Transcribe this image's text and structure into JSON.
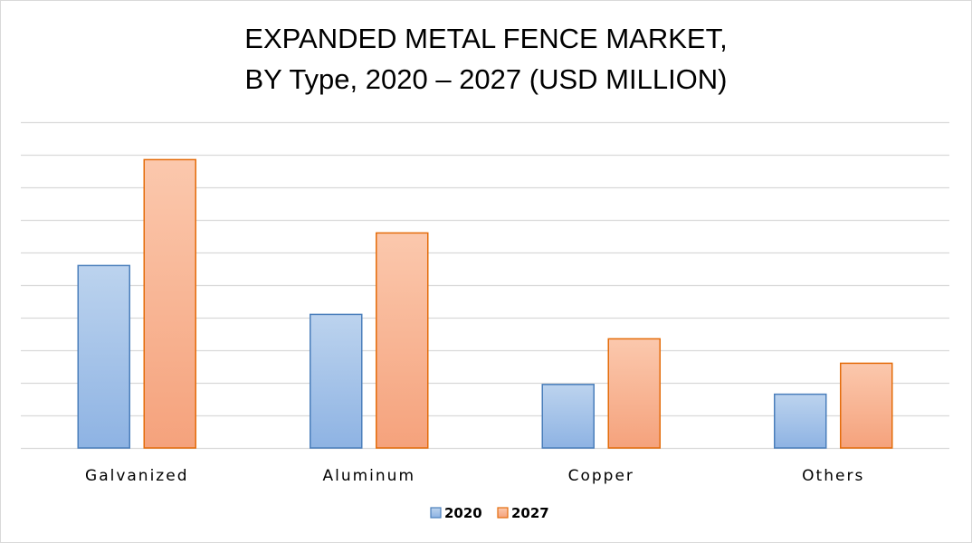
{
  "chart_data": {
    "type": "bar",
    "title_lines": [
      "EXPANDED METAL FENCE MARKET,",
      "BY Type, 2020 – 2027 (USD MILLION)"
    ],
    "xlabel": "",
    "ylabel": "",
    "categories": [
      "Galvanized",
      "Aluminum",
      "Copper",
      "Others"
    ],
    "series": [
      {
        "name": "2020",
        "values": [
          5.6,
          4.1,
          1.95,
          1.65
        ]
      },
      {
        "name": "2027",
        "values": [
          8.85,
          6.6,
          3.35,
          2.6
        ]
      }
    ],
    "ylim": [
      0,
      10
    ],
    "gridlines": 10,
    "grid": true,
    "legend_position": "bottom",
    "colors": {
      "2020": {
        "top": "#bcd3ee",
        "bottom": "#8eb3e3",
        "stroke": "#4a7ebb"
      },
      "2027": {
        "top": "#fbc8ad",
        "bottom": "#f5a27c",
        "stroke": "#e46c0a"
      },
      "grid": "#d9d9d9"
    }
  }
}
